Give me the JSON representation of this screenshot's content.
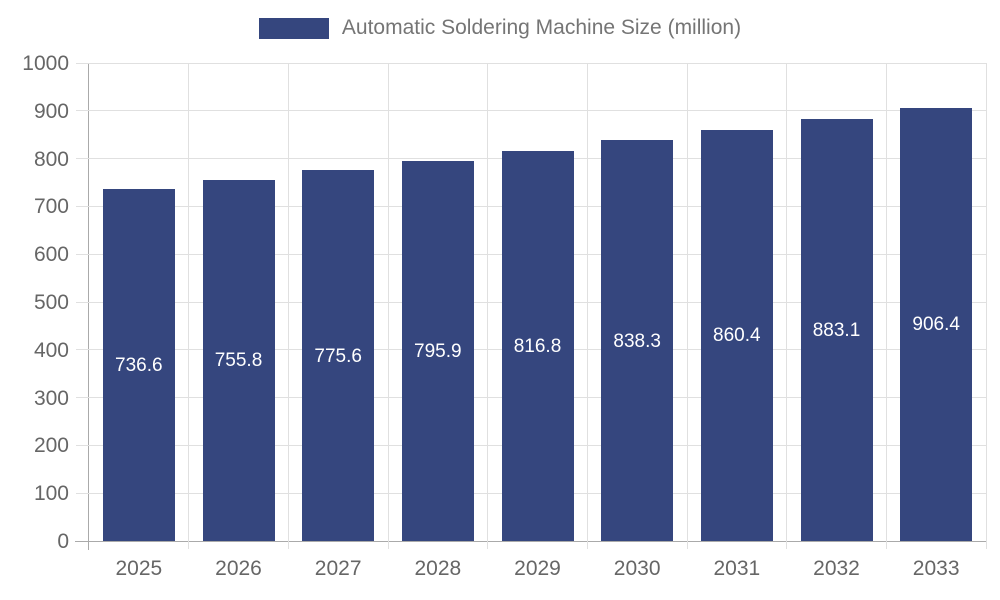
{
  "chart_data": {
    "type": "bar",
    "title": "",
    "legend": "Automatic Soldering Machine Size (million)",
    "legend_position": "top-center",
    "categories": [
      "2025",
      "2026",
      "2027",
      "2028",
      "2029",
      "2030",
      "2031",
      "2032",
      "2033"
    ],
    "values": [
      736.6,
      755.8,
      775.6,
      795.9,
      816.8,
      838.3,
      860.4,
      883.1,
      906.4
    ],
    "xlabel": "",
    "ylabel": "",
    "ylim": [
      0,
      1000
    ],
    "ytick_step": 100,
    "grid": "on",
    "colors": {
      "bar": "#35467e",
      "grid": "#e0e0e0",
      "axis": "#aaaaaa",
      "axis_text": "#666666",
      "legend_text": "#757575",
      "bar_label_text": "#ffffff"
    }
  }
}
